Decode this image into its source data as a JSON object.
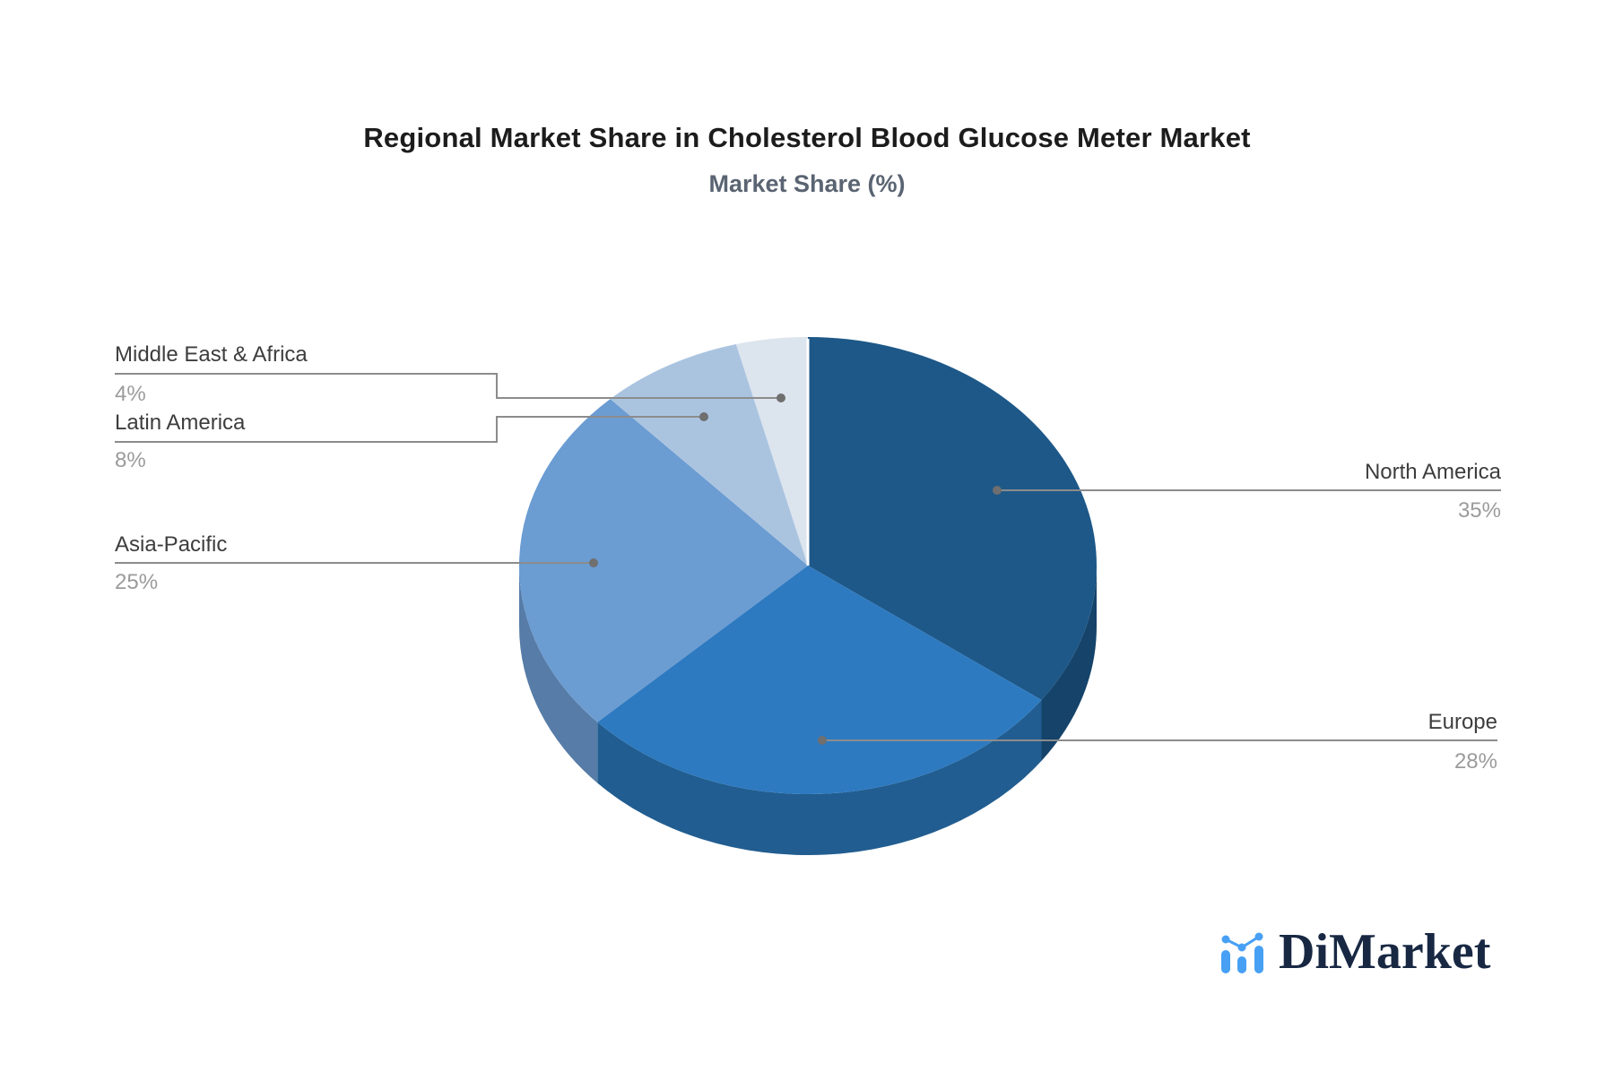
{
  "title": "Regional Market Share in Cholesterol Blood Glucose Meter Market",
  "subtitle": "Market Share (%)",
  "brand": {
    "name": "DiMarket"
  },
  "chart_data": {
    "type": "pie",
    "title": "Regional Market Share in Cholesterol Blood Glucose Meter Market",
    "subtitle": "Market Share (%)",
    "unit": "%",
    "direction": "clockwise",
    "start_angle": "12-o-clock",
    "effect": "3d-depth",
    "legend_position": "callout-labels",
    "slices": [
      {
        "label": "North America",
        "value": 35,
        "pct_text": "35%",
        "color": "#1d5888",
        "side_color": "#15436a"
      },
      {
        "label": "Europe",
        "value": 28,
        "pct_text": "28%",
        "color": "#2e7ac1",
        "side_color": "#215d90"
      },
      {
        "label": "Asia-Pacific",
        "value": 25,
        "pct_text": "25%",
        "color": "#6b9cd2",
        "side_color": "#567ca7"
      },
      {
        "label": "Latin America",
        "value": 8,
        "pct_text": "8%",
        "color": "#aac4e0",
        "side_color": "#8fb0d0"
      },
      {
        "label": "Middle East & Africa",
        "value": 4,
        "pct_text": "4%",
        "color": "#dce4ee",
        "side_color": "#c3cfdd"
      }
    ],
    "callout_line_color": "#8c8c8c",
    "callout_dot_color": "#6f6f6f",
    "label_color": "#3d3d3d",
    "pct_color": "#9b9b9b"
  }
}
